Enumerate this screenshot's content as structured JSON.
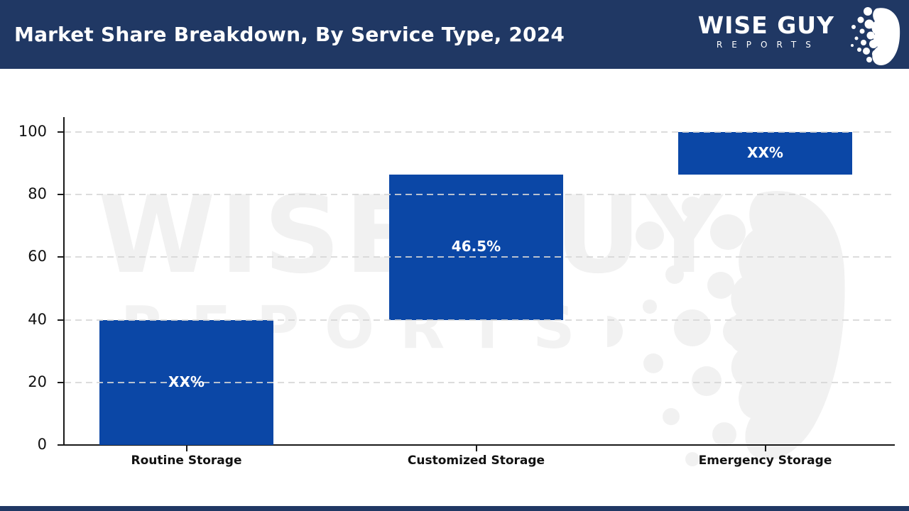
{
  "header": {
    "title": "Market Share Breakdown, By Service Type, 2024",
    "bg_color": "#203864",
    "logo": {
      "line1": "WISE GUY",
      "line2": "REPORTS"
    }
  },
  "watermark": {
    "line1": "WISE GUY",
    "line2": "REPORTS",
    "color": "#f1f1f1"
  },
  "chart_data": {
    "type": "bar",
    "variant": "floating-segment-breakdown",
    "title": "Market Share Breakdown, By Service Type, 2024",
    "categories": [
      "Routine Storage",
      "Customized Storage",
      "Emergency Storage"
    ],
    "bars": [
      {
        "category": "Routine Storage",
        "start": 0,
        "end": 40,
        "label": "XX%"
      },
      {
        "category": "Customized Storage",
        "start": 40,
        "end": 86.5,
        "label": "46.5%"
      },
      {
        "category": "Emergency Storage",
        "start": 86.5,
        "end": 100,
        "label": "XX%"
      }
    ],
    "yticks": [
      0,
      20,
      40,
      60,
      80,
      100
    ],
    "ylim": [
      0,
      105
    ],
    "xlabel": "",
    "ylabel": "",
    "grid": "horizontal-dashed",
    "legend": "none",
    "bar_color": "#0b47a6",
    "bar_label_color": "#ffffff",
    "axis_color": "#1a1a1a",
    "grid_color": "#d6d6d6"
  },
  "footer": {
    "bg_color": "#203864"
  }
}
